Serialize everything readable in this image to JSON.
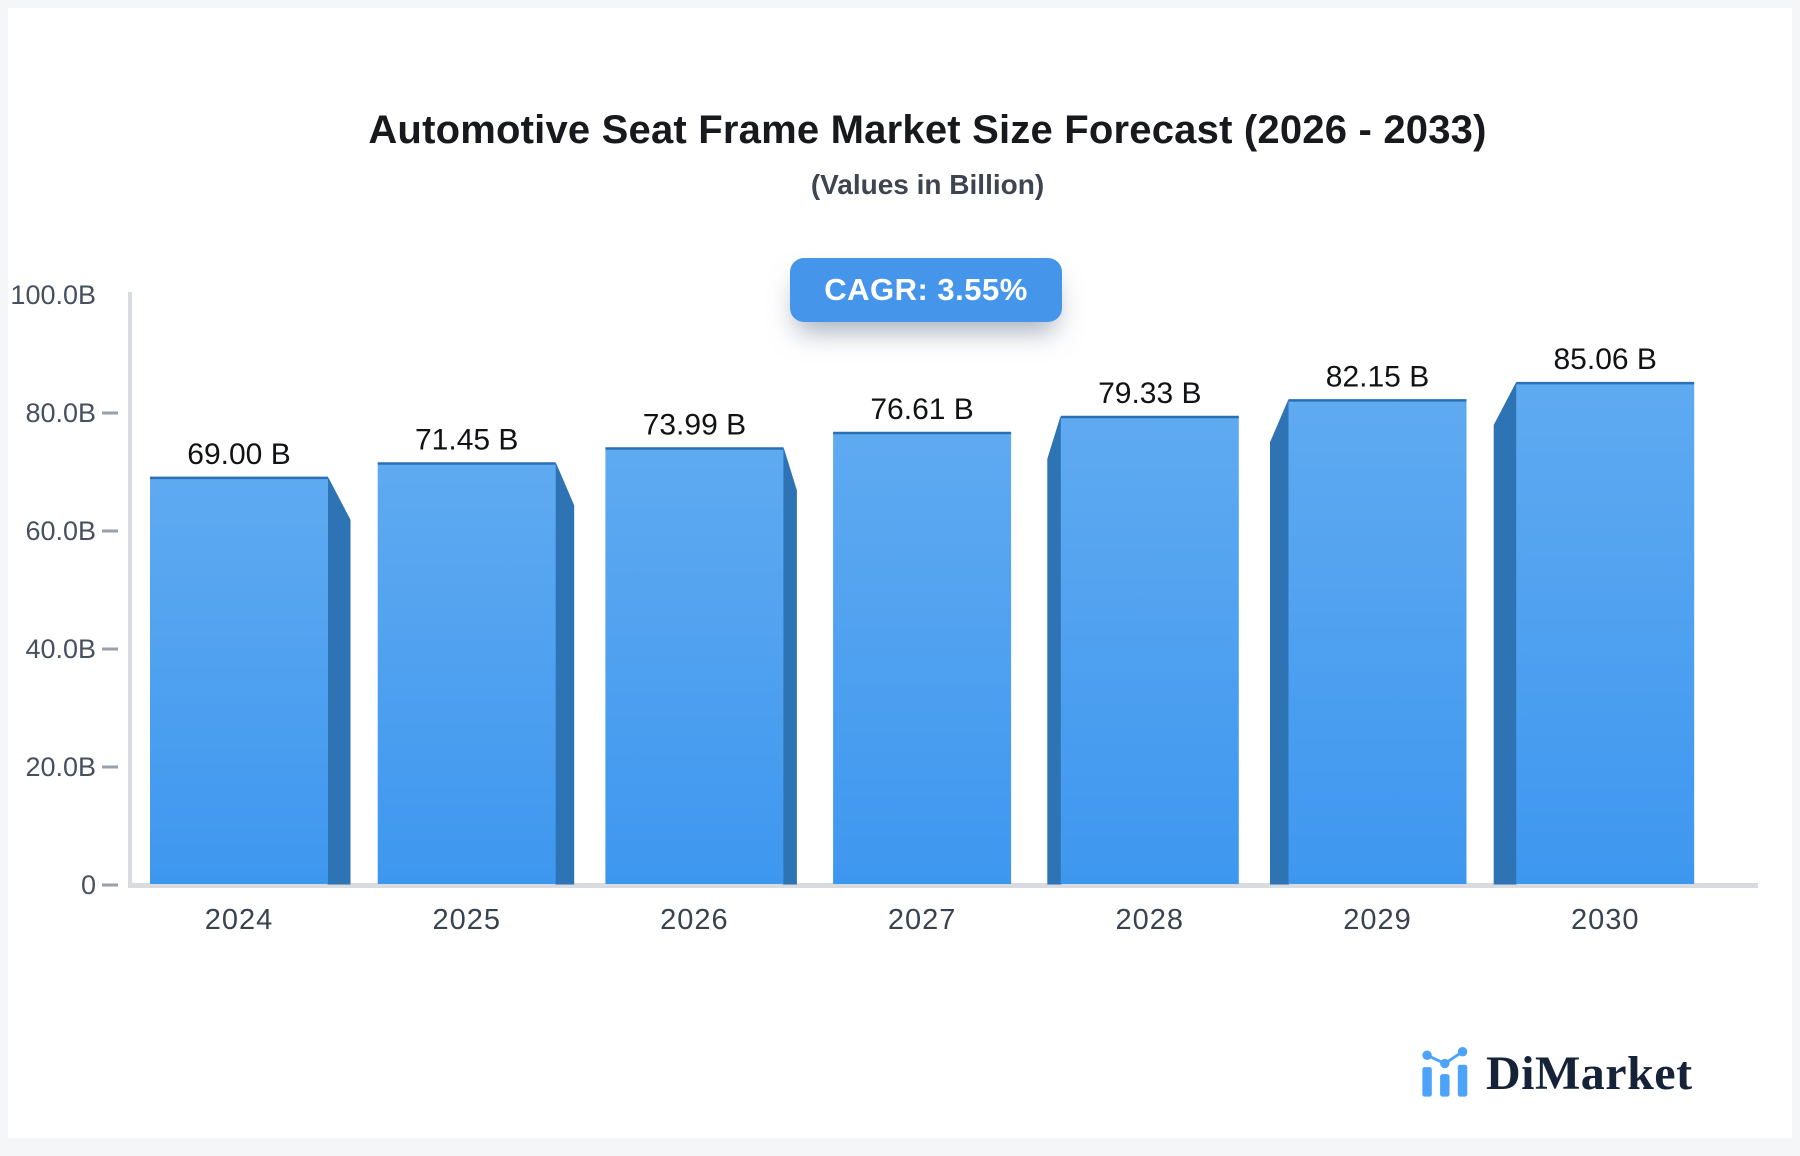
{
  "header": {
    "title": "Automotive Seat Frame Market Size Forecast (2026 - 2033)",
    "subtitle": "(Values in Billion)"
  },
  "badge": {
    "label": "CAGR: 3.55%",
    "background": "#4596ea"
  },
  "logo": {
    "name": "DiMarket",
    "icon": "bar-chart-logo-icon",
    "icon_color": "#4da3f7",
    "text_color": "#152238"
  },
  "colors": {
    "bar_face_top": "#5FAAF1",
    "bar_face_bottom": "#3E97EF",
    "bar_side": "#2E73B3",
    "bar_top_edge": "#2B6FB4",
    "axis_line": "#d8dbe0",
    "tick": "#97a0ac",
    "y_label": "#46515f",
    "x_label": "#39434f",
    "value_label": "#101214",
    "frame_background": "#f4f6f8",
    "card_background": "#ffffff"
  },
  "chart_data": {
    "type": "bar",
    "title": "Automotive Seat Frame Market Size Forecast (2026 - 2033)",
    "subtitle": "(Values in Billion)",
    "categories": [
      "2024",
      "2025",
      "2026",
      "2027",
      "2028",
      "2029",
      "2030"
    ],
    "values": [
      69.0,
      71.45,
      73.99,
      76.61,
      79.33,
      82.15,
      85.06
    ],
    "value_labels": [
      "69.00 B",
      "71.45 B",
      "73.99 B",
      "76.61 B",
      "79.33 B",
      "82.15 B",
      "85.06 B"
    ],
    "ylabel": "",
    "xlabel": "",
    "ylim": [
      0,
      100
    ],
    "y_ticks": [
      100,
      80,
      60,
      40,
      20,
      0
    ],
    "y_tick_labels": [
      "100.0B",
      "80.0B",
      "60.0B",
      "40.0B",
      "20.0B",
      "0"
    ],
    "grid": false,
    "legend": "none",
    "bar_style": "3d-perspective",
    "annotation": "CAGR: 3.55%"
  }
}
